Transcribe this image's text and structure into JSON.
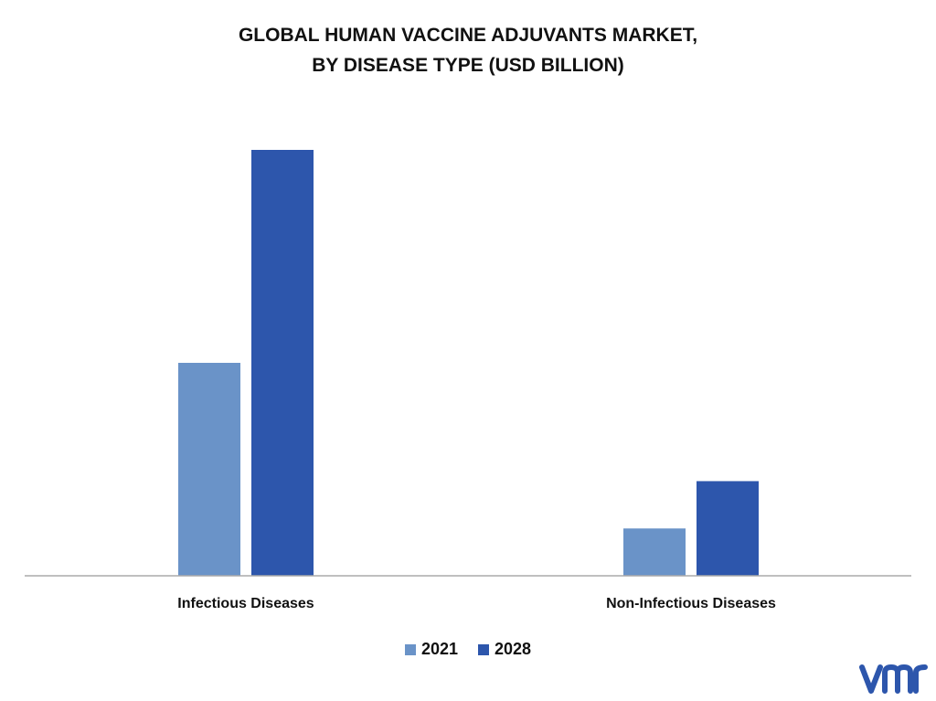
{
  "chart_data": {
    "type": "bar",
    "title_lines": [
      "GLOBAL HUMAN VACCINE ADJUVANTS MARKET,",
      "BY DISEASE TYPE (USD BILLION)"
    ],
    "categories": [
      "Infectious Diseases",
      "Non-Infectious Diseases"
    ],
    "series": [
      {
        "name": "2021",
        "values": [
          0.45,
          0.1
        ],
        "color": "#6a93c8"
      },
      {
        "name": "2028",
        "values": [
          0.9,
          0.2
        ],
        "color": "#2d56ac"
      }
    ],
    "ylim": [
      0,
      1
    ],
    "grid": false,
    "legend_position": "bottom",
    "axis_color": "#aaaaaa"
  },
  "logo": {
    "name": "vmr-logo",
    "color": "#2d56ac"
  }
}
